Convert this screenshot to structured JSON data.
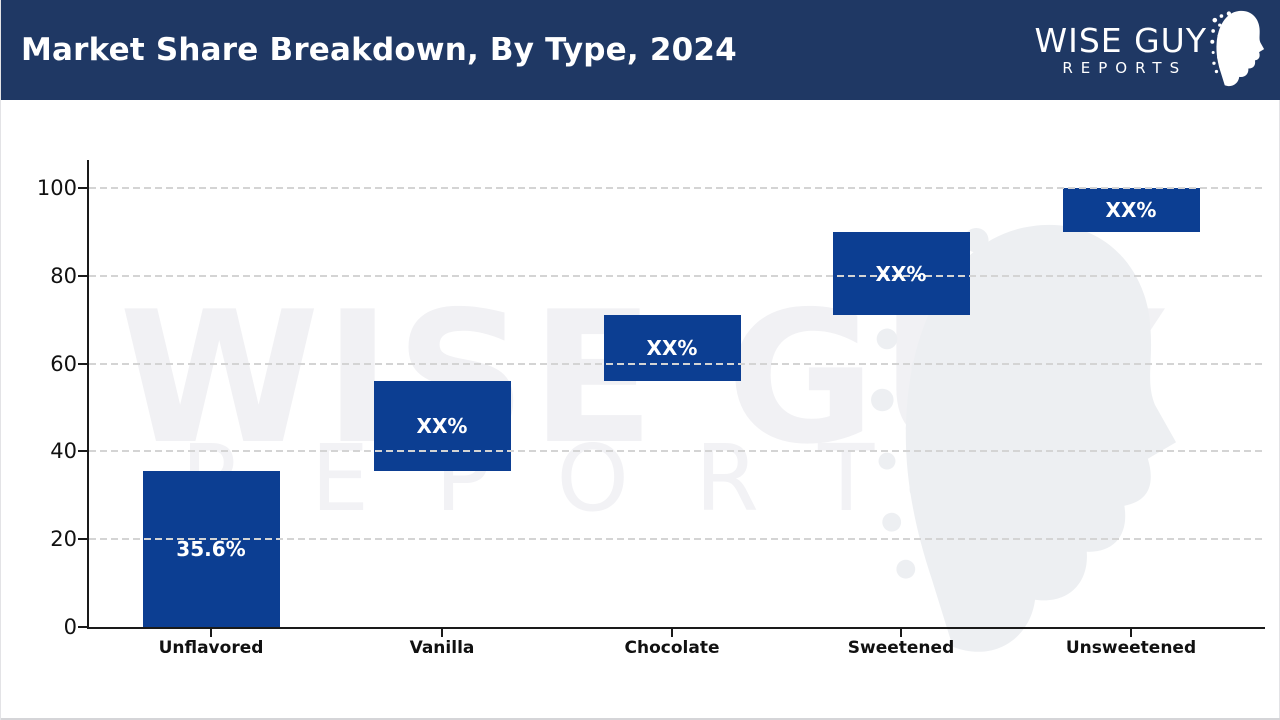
{
  "header": {
    "title": "Market Share Breakdown, By Type, 2024",
    "bg_color": "#1F3864",
    "logo": {
      "line1": "WISE GUY",
      "line2": "REPORTS"
    }
  },
  "chart_data": {
    "type": "bar",
    "subtype": "waterfall",
    "title": "Market Share Breakdown, By Type, 2024",
    "categories": [
      "Unflavored",
      "Vanilla",
      "Chocolate",
      "Sweetened",
      "Unsweetened"
    ],
    "series": [
      {
        "name": "Market Share (%)",
        "segments": [
          {
            "category": "Unflavored",
            "start": 0,
            "end": 35.6,
            "label": "35.6%"
          },
          {
            "category": "Vanilla",
            "start": 35.6,
            "end": 56,
            "label": "XX%"
          },
          {
            "category": "Chocolate",
            "start": 56,
            "end": 71,
            "label": "XX%"
          },
          {
            "category": "Sweetened",
            "start": 71,
            "end": 90,
            "label": "XX%"
          },
          {
            "category": "Unsweetened",
            "start": 90,
            "end": 100,
            "label": "XX%"
          }
        ]
      }
    ],
    "xlabel": "",
    "ylabel": "",
    "ylim": [
      0,
      100
    ],
    "yticks": [
      0,
      20,
      40,
      60,
      80,
      100
    ],
    "grid": "horizontal-dashed",
    "legend": "none",
    "bar_color": "#0C3E92",
    "bar_label_color": "#FFFFFF",
    "watermark": {
      "line1": "WISE GUY",
      "line2": "REPORTS"
    }
  }
}
